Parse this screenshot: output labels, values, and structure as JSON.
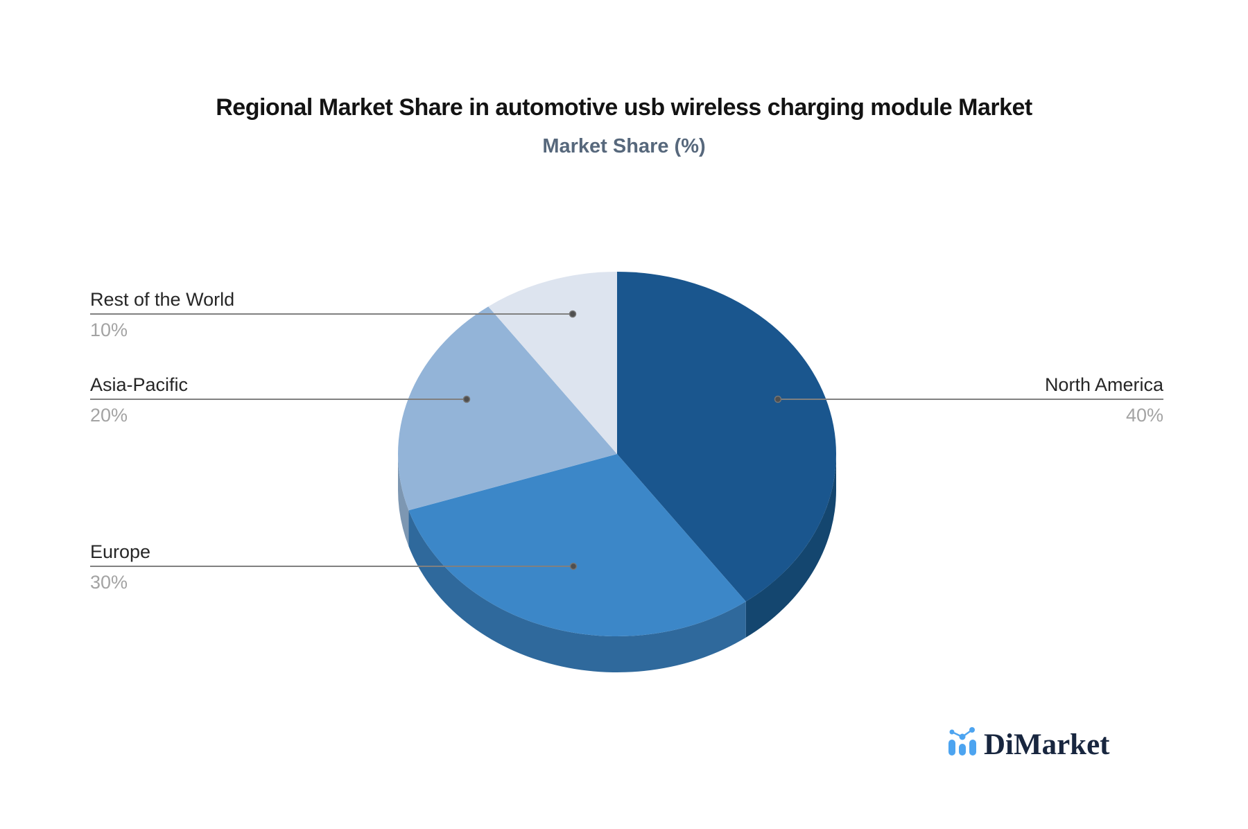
{
  "header": {
    "title": "Regional Market Share in automotive usb wireless charging module Market",
    "subtitle": "Market Share (%)"
  },
  "watermark": {
    "brand": "DiMarket"
  },
  "chart_data": {
    "type": "pie",
    "style": "3d",
    "title": "Regional Market Share in automotive usb wireless charging module Market",
    "subtitle": "Market Share (%)",
    "unit": "%",
    "direction": "clockwise",
    "start_angle_deg": 0,
    "legend_position": "none",
    "leader_line_color": "#808080",
    "label_text_color": "#262626",
    "percent_text_color": "#a3a3a3",
    "slices": [
      {
        "label": "North America",
        "value": 40,
        "pct_label": "40%",
        "color": "#1a568e",
        "depth_color": "#14466f",
        "label_side": "right"
      },
      {
        "label": "Europe",
        "value": 30,
        "pct_label": "30%",
        "color": "#3c87c8",
        "depth_color": "#2f699c",
        "label_side": "left"
      },
      {
        "label": "Asia-Pacific",
        "value": 20,
        "pct_label": "20%",
        "color": "#93b4d8",
        "depth_color": "#7d97b2",
        "label_side": "left"
      },
      {
        "label": "Rest of the World",
        "value": 10,
        "pct_label": "10%",
        "color": "#dde4ef",
        "depth_color": "#c3cede",
        "label_side": "left"
      }
    ]
  }
}
